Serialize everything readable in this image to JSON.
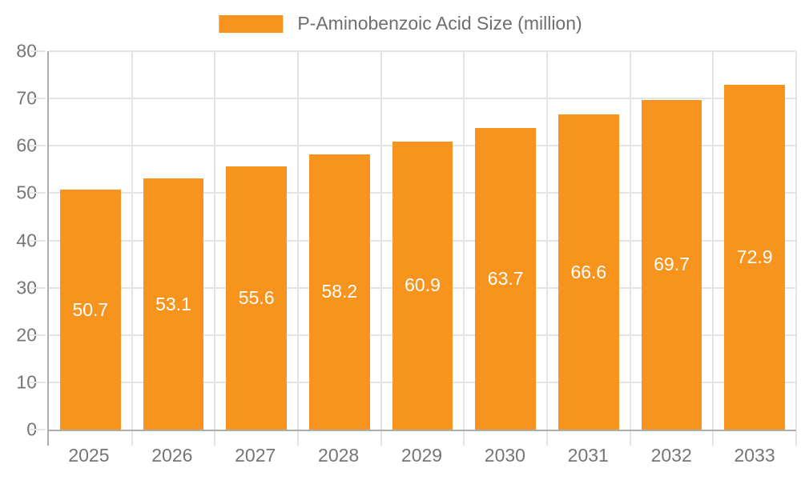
{
  "legend": {
    "label": "P-Aminobenzoic Acid Size (million)"
  },
  "colors": {
    "background": "#FFFFFF",
    "bar": "#F7941E",
    "axis": "#ADADAD",
    "grid": "#E4E4E4",
    "tick_text": "#757575",
    "legend_text": "#6E6E6E",
    "value_label": "#FFFFFF"
  },
  "chart_data": {
    "type": "bar",
    "title": "",
    "xlabel": "",
    "ylabel": "",
    "categories": [
      "2025",
      "2026",
      "2027",
      "2028",
      "2029",
      "2030",
      "2031",
      "2032",
      "2033"
    ],
    "series": [
      {
        "name": "P-Aminobenzoic Acid Size (million)",
        "values": [
          50.7,
          53.1,
          55.6,
          58.2,
          60.9,
          63.7,
          66.6,
          69.7,
          72.9
        ]
      }
    ],
    "value_label_decimals": 1,
    "ylim": [
      0,
      80
    ],
    "ytick_step": 10,
    "grid": true,
    "legend_position": "top",
    "bar_width_fraction": 0.73
  }
}
